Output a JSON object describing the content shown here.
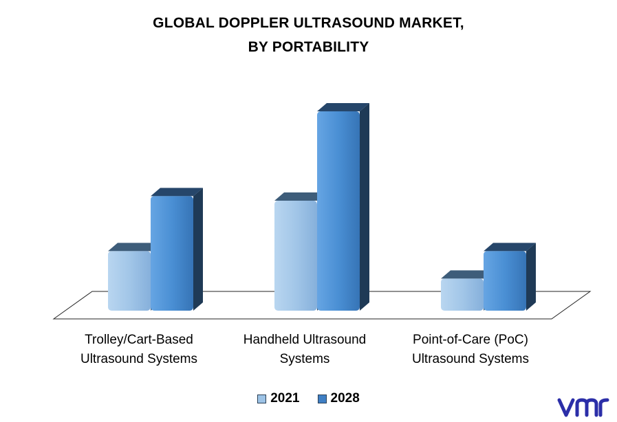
{
  "chart_data": {
    "type": "bar",
    "title_line1": "GLOBAL DOPPLER ULTRASOUND MARKET,",
    "title_line2": "BY PORTABILITY",
    "categories": [
      [
        "Trolley/Cart-Based",
        "Ultrasound Systems"
      ],
      [
        "Handheld Ultrasound",
        "Systems"
      ],
      [
        "Point-of-Care (PoC)",
        "Ultrasound Systems"
      ]
    ],
    "series": [
      {
        "name": "2021",
        "values": [
          2.6,
          4.8,
          1.4
        ],
        "color": "#9dc3e6"
      },
      {
        "name": "2028",
        "values": [
          5.0,
          8.7,
          2.6
        ],
        "color": "#4a8fd4"
      }
    ],
    "ylim": [
      0,
      9
    ],
    "grid": false,
    "legend_position": "bottom"
  },
  "logo_text": "vmr"
}
